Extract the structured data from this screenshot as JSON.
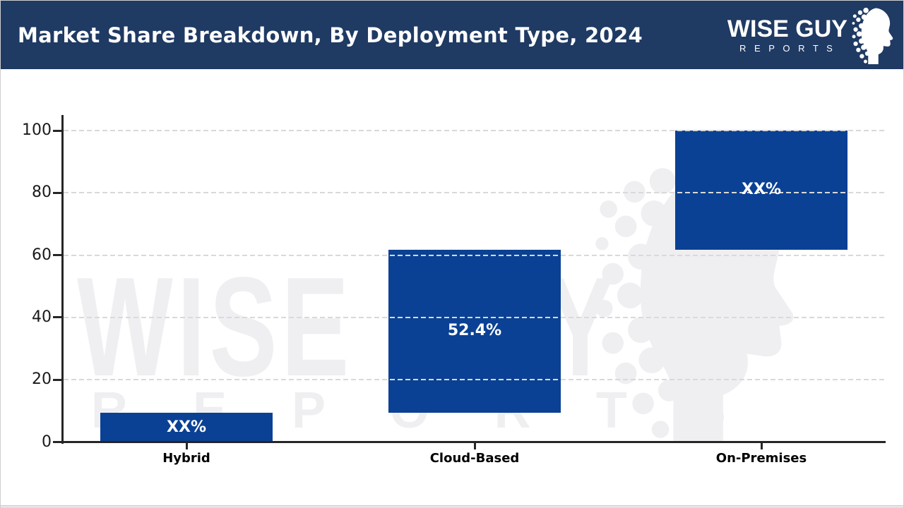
{
  "header": {
    "title": "Market Share Breakdown, By Deployment Type, 2024",
    "bg_color": "#1F3A63",
    "logo": {
      "line1": "WISE GUY",
      "line2": "R E P O R T S"
    }
  },
  "watermark": {
    "line1": "WISE GUY",
    "line2": "R E P O R T S"
  },
  "chart_data": {
    "type": "bar",
    "subtype": "floating-stacked-waterfall",
    "title": "Market Share Breakdown, By Deployment Type, 2024",
    "categories": [
      "Hybrid",
      "Cloud-Based",
      "On-Premises"
    ],
    "bars": [
      {
        "category": "Hybrid",
        "start": 0,
        "end": 9.4,
        "label": "XX%"
      },
      {
        "category": "Cloud-Based",
        "start": 9.4,
        "end": 61.8,
        "label": "52.4%"
      },
      {
        "category": "On-Premises",
        "start": 61.8,
        "end": 100,
        "label": "XX%"
      }
    ],
    "bar_color": "#0B4194",
    "y_ticks": [
      0,
      20,
      40,
      60,
      80,
      100
    ],
    "ylim": [
      0,
      105
    ],
    "xlabel": "",
    "ylabel": "",
    "grid": "horizontal-dashed",
    "legend": "none",
    "gridline_color": "#d9d9d9",
    "axis_color": "#262626"
  }
}
